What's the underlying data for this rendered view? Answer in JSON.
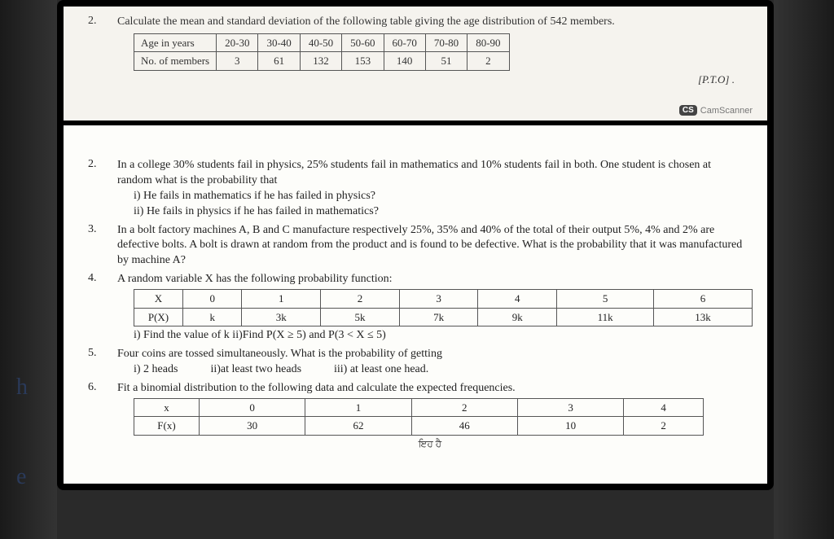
{
  "upper": {
    "q1": {
      "num": "2.",
      "text": "Calculate the mean and standard deviation of the following table giving the age distribution of 542 members.",
      "table": {
        "row1": [
          "Age in years",
          "20-30",
          "30-40",
          "40-50",
          "50-60",
          "60-70",
          "70-80",
          "80-90"
        ],
        "row2": [
          "No. of members",
          "3",
          "61",
          "132",
          "153",
          "140",
          "51",
          "2"
        ]
      },
      "pto": "[P.T.O]  ."
    },
    "camscanner": {
      "badge": "CS",
      "label": "CamScanner"
    }
  },
  "lower": {
    "q2": {
      "num": "2.",
      "text": "In a college 30% students fail in physics, 25% students fail in mathematics and 10% students fail in both. One student is chosen at random what is the probability that",
      "sub_i": "i) He fails in mathematics if he has failed in physics?",
      "sub_ii": "ii) He fails in physics if he has failed in mathematics?"
    },
    "q3": {
      "num": "3.",
      "text": "In a bolt factory machines A, B and C manufacture respectively 25%, 35% and 40% of the total of their output 5%, 4% and 2% are defective bolts. A bolt is drawn at random from the product and is found to be defective. What is  the probability that it was manufactured by machine A?"
    },
    "q4": {
      "num": "4.",
      "text": "A random variable X has the following probability function:",
      "table": {
        "row1": [
          "X",
          "0",
          "1",
          "2",
          "3",
          "4",
          "5",
          "6"
        ],
        "row2": [
          "P(X)",
          "k",
          "3k",
          "5k",
          "7k",
          "9k",
          "11k",
          "13k"
        ]
      },
      "sub": "i) Find the value of k  ii)Find P(X ≥ 5) and P(3 < X ≤ 5)"
    },
    "q5": {
      "num": "5.",
      "text": "Four coins are tossed simultaneously. What is  the  probability of getting",
      "sub_i": "i) 2 heads",
      "sub_ii": "ii)at least two heads",
      "sub_iii": "iii) at least one head."
    },
    "q6": {
      "num": "6.",
      "text": "Fit a binomial distribution to the following data and calculate the expected frequencies.",
      "table": {
        "row1": [
          "x",
          "0",
          "1",
          "2",
          "3",
          "4"
        ],
        "row2": [
          "F(x)",
          "30",
          "62",
          "46",
          "10",
          "2"
        ]
      },
      "scribble": "ਇਹ ਹੈ"
    }
  },
  "handwriting": {
    "h": "h",
    "e": "e"
  }
}
